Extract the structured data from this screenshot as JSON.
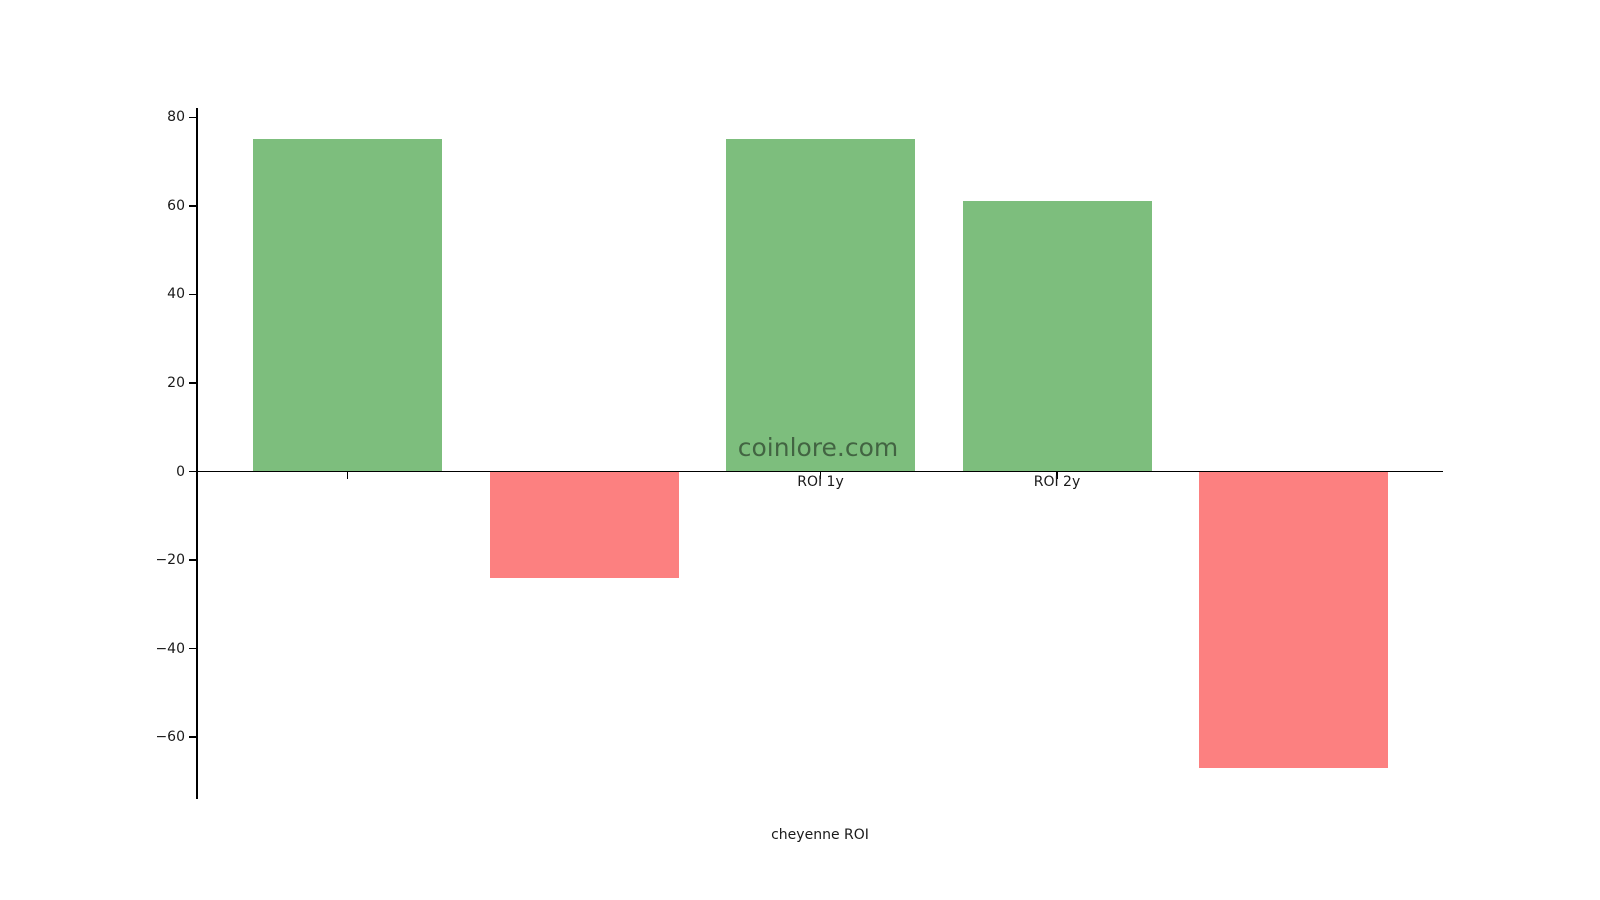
{
  "page": {
    "background_color": "#ffffff"
  },
  "watermark": {
    "text": "coinlore.com",
    "color": "#40603f"
  },
  "axes": {
    "spine_color": "#000000",
    "tick_label_color": "#1a1a1a",
    "left_spine": true,
    "x_axis_at_zero": true,
    "top_spine": false,
    "right_spine": false
  },
  "chart_data": {
    "type": "bar",
    "title": "",
    "xlabel": "cheyenne ROI",
    "ylabel": "",
    "categories": [
      "",
      "",
      "ROI 1y",
      "ROI 2y",
      ""
    ],
    "values": [
      75,
      -24,
      75,
      61,
      -67
    ],
    "bar_colors": [
      "#7dbe7d",
      "#fc8080",
      "#7dbe7d",
      "#7dbe7d",
      "#fc8080"
    ],
    "positive_color": "#7dbe7d",
    "negative_color": "#fc8080",
    "yticks": [
      {
        "label": "80",
        "value": 80
      },
      {
        "label": "60",
        "value": 60
      },
      {
        "label": "40",
        "value": 40
      },
      {
        "label": "20",
        "value": 20
      },
      {
        "label": "0",
        "value": 0
      },
      {
        "label": "−20",
        "value": -20
      },
      {
        "label": "−40",
        "value": -40
      },
      {
        "label": "−60",
        "value": -60
      }
    ],
    "ylim": [
      -74,
      82
    ],
    "grid": false,
    "legend": false
  }
}
